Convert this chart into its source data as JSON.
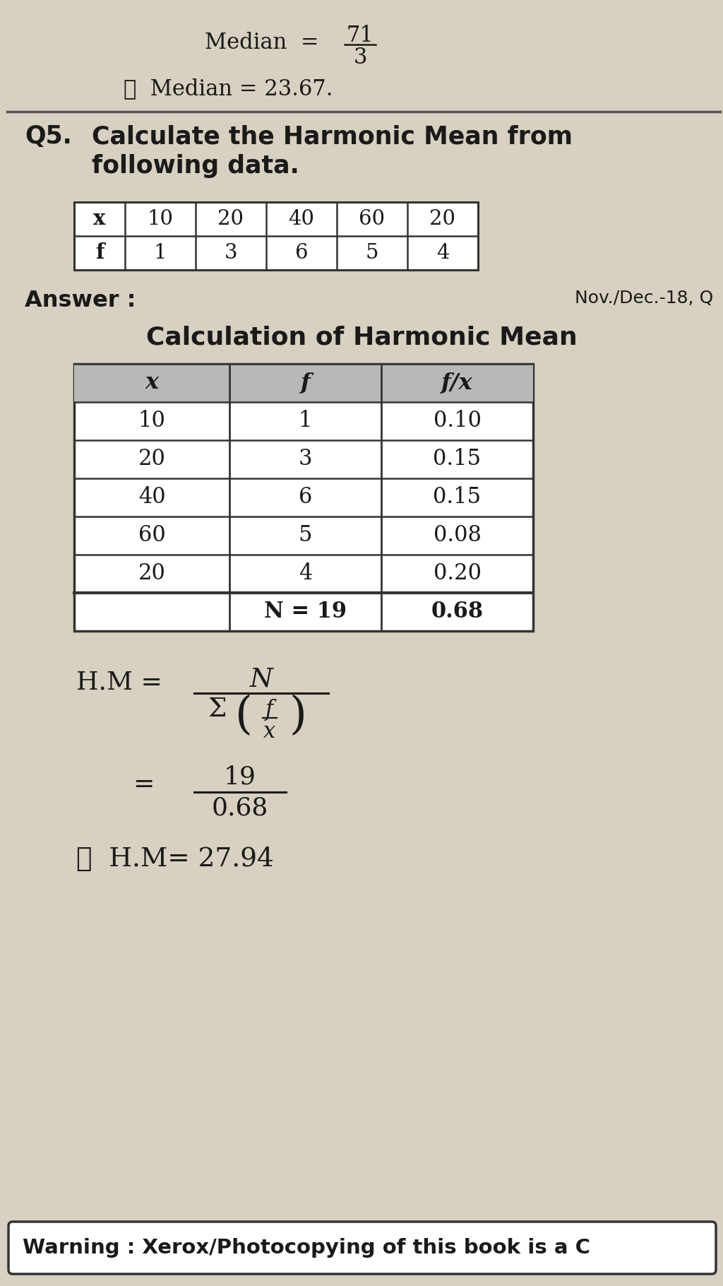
{
  "page_bg": "#d8d0c0",
  "input_table_headers": [
    "x",
    "10",
    "20",
    "40",
    "60",
    "20"
  ],
  "input_table_row2": [
    "f",
    "1",
    "3",
    "6",
    "5",
    "4"
  ],
  "answer_label": "Answer :",
  "nov_dec_label": "Nov./Dec.-18, Q",
  "calc_title": "Calculation of Harmonic Mean",
  "calc_table_headers": [
    "x",
    "f",
    "f/x"
  ],
  "calc_table_rows": [
    [
      "10",
      "1",
      "0.10"
    ],
    [
      "20",
      "3",
      "0.15"
    ],
    [
      "40",
      "6",
      "0.15"
    ],
    [
      "60",
      "5",
      "0.08"
    ],
    [
      "20",
      "4",
      "0.20"
    ]
  ],
  "calc_table_total": [
    "",
    "N = 19",
    "0.68"
  ],
  "result_line": "∴  H.M= 27.94",
  "warning_text": "Warning : Xerox/Photocopying of this book is a C",
  "header_bg": "#b8b8b8",
  "text_color": "#1a1a1a"
}
